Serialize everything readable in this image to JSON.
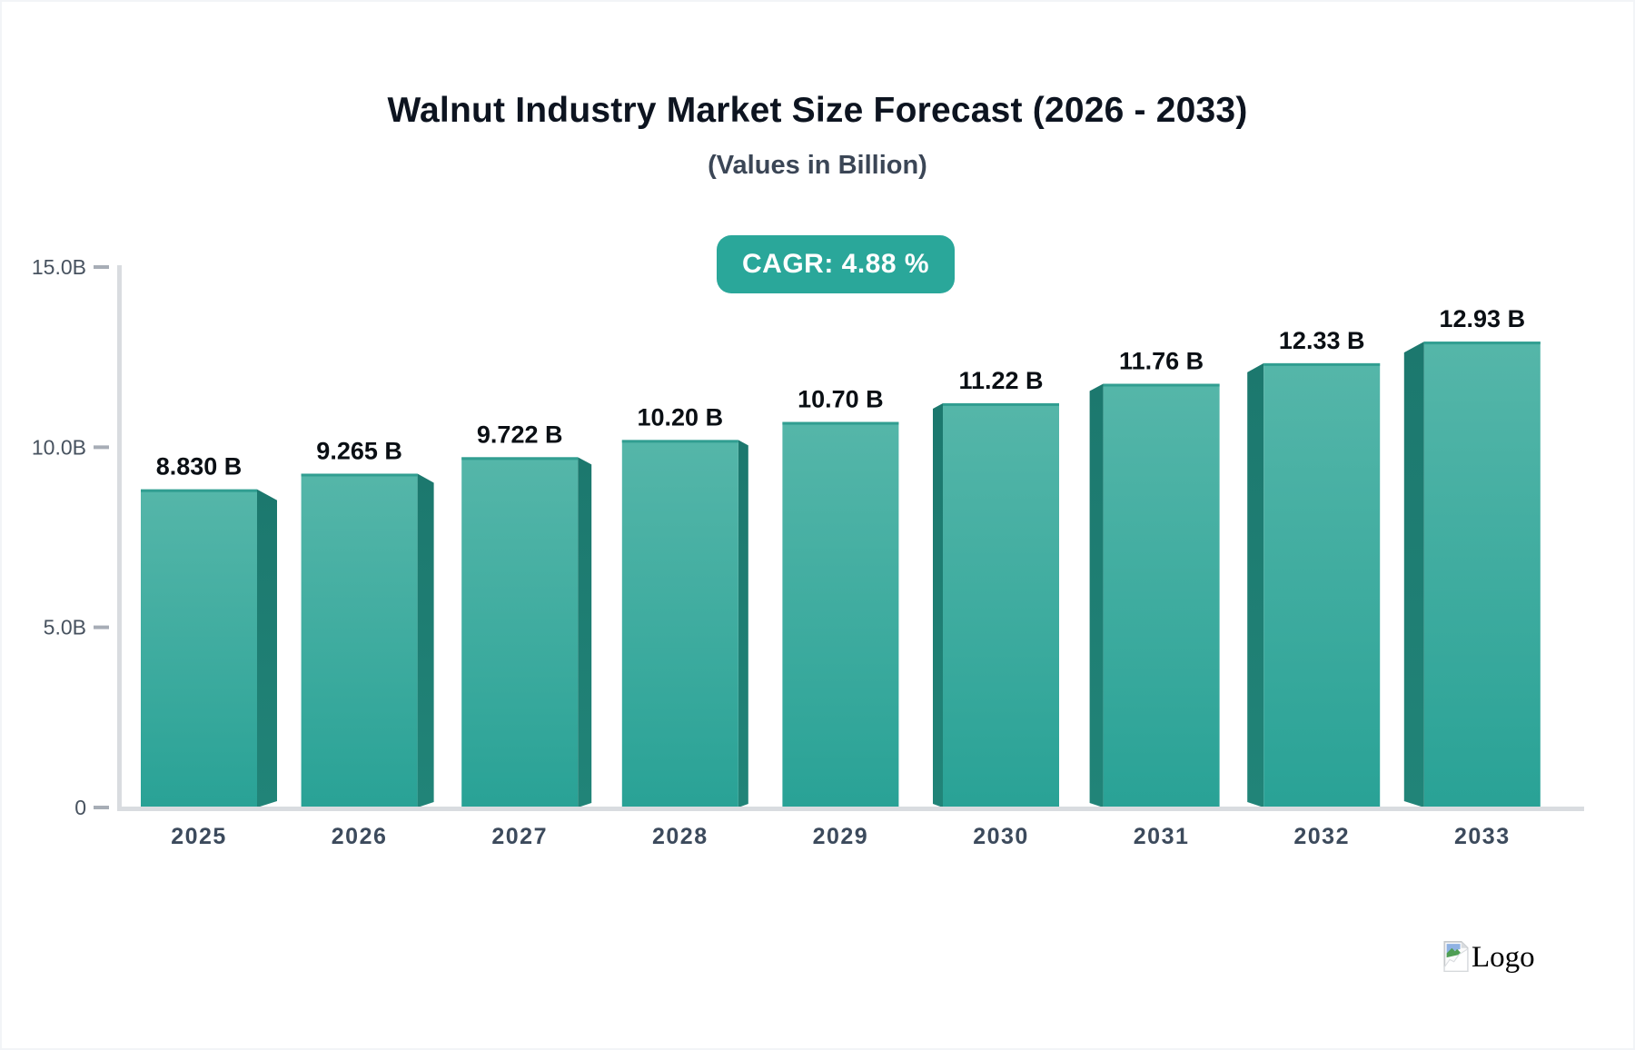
{
  "header": {
    "title": "Walnut Industry Market Size Forecast (2026 - 2033)",
    "subtitle": "(Values in Billion)",
    "badge": "CAGR: 4.88 %"
  },
  "logo": {
    "alt": "Logo"
  },
  "chart_data": {
    "type": "bar",
    "title": "Walnut Industry Market Size Forecast (2026 - 2033)",
    "subtitle": "(Values in Billion)",
    "cagr_label": "CAGR: 4.88 %",
    "unit": "Billion",
    "categories": [
      "2025",
      "2026",
      "2027",
      "2028",
      "2029",
      "2030",
      "2031",
      "2032",
      "2033"
    ],
    "values": [
      8.83,
      9.265,
      9.722,
      10.2,
      10.7,
      11.22,
      11.76,
      12.33,
      12.93
    ],
    "value_labels": [
      "8.830 B",
      "9.265 B",
      "9.722 B",
      "10.20 B",
      "10.70 B",
      "11.22 B",
      "11.76 B",
      "12.33 B",
      "12.93 B"
    ],
    "ylim": [
      0,
      15
    ],
    "yticks": [
      {
        "value": 0,
        "label": "0"
      },
      {
        "value": 5,
        "label": "5.0B"
      },
      {
        "value": 10,
        "label": "10.0B"
      },
      {
        "value": 15,
        "label": "15.0B"
      }
    ],
    "grid": false,
    "legend": false,
    "style": "pseudo-3d-bars",
    "colors": {
      "bar_face_top": "#55b6a9",
      "bar_face_bottom": "#29a296",
      "bar_top_edge": "#2d9b8e",
      "bar_side_top": "#1c786e",
      "bar_side_bottom": "#218478",
      "axis_line": "#d9dce0",
      "tick_mark": "#a7adb6",
      "tick_label": "#47525f",
      "category_label": "#3c4a5c",
      "value_label": "#0a0f14",
      "badge_bg": "#2aa79a",
      "badge_text": "#ffffff"
    }
  }
}
